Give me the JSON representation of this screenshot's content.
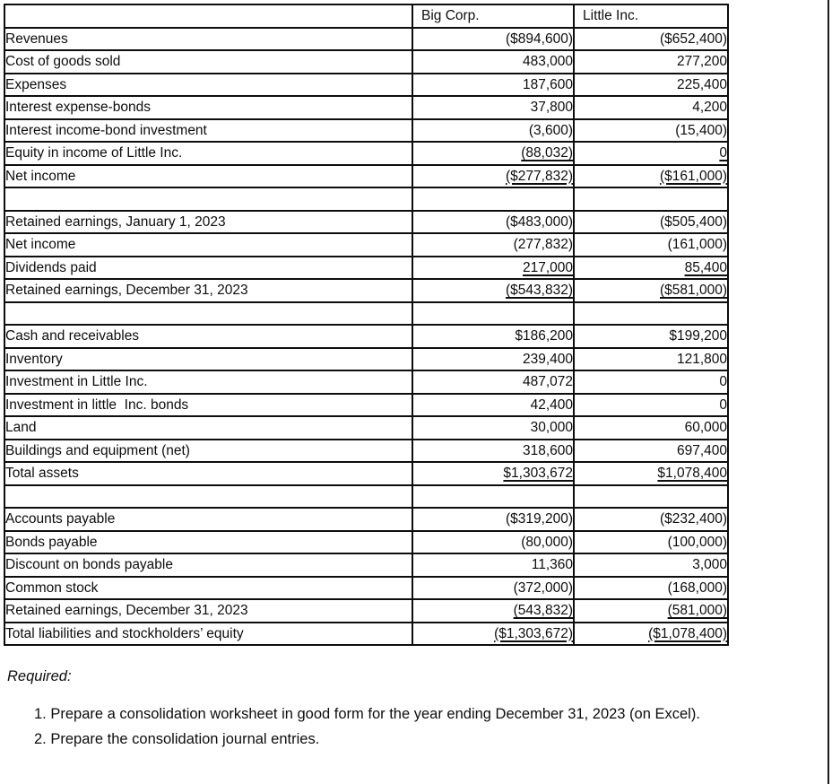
{
  "colors": {
    "background": "#ffffff",
    "text": "#0d0d0d",
    "table_border": "#0d0d0d"
  },
  "table": {
    "columns": [
      "",
      "Big Corp.",
      "Little Inc."
    ],
    "rows": [
      {
        "label": "Revenues",
        "big": "($894,600)",
        "little": "($652,400)",
        "u": false,
        "spacer": false
      },
      {
        "label": "Cost of goods sold",
        "big": "483,000",
        "little": "277,200",
        "u": false,
        "spacer": false
      },
      {
        "label": "Expenses",
        "big": "187,600",
        "little": "225,400",
        "u": false,
        "spacer": false
      },
      {
        "label": "Interest expense-bonds",
        "big": "37,800",
        "little": "4,200",
        "u": false,
        "spacer": false
      },
      {
        "label": "Interest income-bond investment",
        "big": "(3,600)",
        "little": "(15,400)",
        "u": false,
        "spacer": false
      },
      {
        "label": "Equity in income of Little Inc.",
        "big": "(88,032)",
        "little": "0",
        "u": true,
        "spacer": false
      },
      {
        "label": "Net income",
        "big": "($277,832)",
        "little": "($161,000)",
        "u": true,
        "spacer": false
      },
      {
        "label": "",
        "big": "",
        "little": "",
        "u": false,
        "spacer": true
      },
      {
        "label": "Retained earnings, January 1, 2023",
        "big": "($483,000)",
        "little": "($505,400)",
        "u": false,
        "spacer": false
      },
      {
        "label": "Net income",
        "big": "(277,832)",
        "little": "(161,000)",
        "u": false,
        "spacer": false
      },
      {
        "label": "Dividends paid",
        "big": "217,000",
        "little": "85,400",
        "u": true,
        "spacer": false
      },
      {
        "label": "Retained earnings, December 31, 2023",
        "big": "($543,832)",
        "little": "($581,000)",
        "u": true,
        "spacer": false
      },
      {
        "label": "",
        "big": "",
        "little": "",
        "u": false,
        "spacer": true
      },
      {
        "label": "Cash and receivables",
        "big": "$186,200",
        "little": "$199,200",
        "u": false,
        "spacer": false
      },
      {
        "label": "Inventory",
        "big": "239,400",
        "little": "121,800",
        "u": false,
        "spacer": false
      },
      {
        "label": "Investment in Little Inc.",
        "big": "487,072",
        "little": "0",
        "u": false,
        "spacer": false
      },
      {
        "label": "Investment in little  Inc. bonds",
        "big": "42,400",
        "little": "0",
        "u": false,
        "spacer": false
      },
      {
        "label": "Land",
        "big": "30,000",
        "little": "60,000",
        "u": false,
        "spacer": false
      },
      {
        "label": "Buildings and equipment (net)",
        "big": "318,600",
        "little": "697,400",
        "u": false,
        "spacer": false
      },
      {
        "label": "Total assets",
        "big": "$1,303,672",
        "little": "$1,078,400",
        "u": true,
        "spacer": false
      },
      {
        "label": "",
        "big": "",
        "little": "",
        "u": false,
        "spacer": true
      },
      {
        "label": "Accounts payable",
        "big": "($319,200)",
        "little": "($232,400)",
        "u": false,
        "spacer": false
      },
      {
        "label": "Bonds payable",
        "big": "(80,000)",
        "little": "(100,000)",
        "u": false,
        "spacer": false
      },
      {
        "label": "Discount on bonds payable",
        "big": "11,360",
        "little": "3,000",
        "u": false,
        "spacer": false
      },
      {
        "label": "Common stock",
        "big": "(372,000)",
        "little": "(168,000)",
        "u": false,
        "spacer": false
      },
      {
        "label": "Retained earnings, December 31, 2023",
        "big": "(543,832)",
        "little": "(581,000)",
        "u": true,
        "spacer": false
      },
      {
        "label": "Total liabilities and stockholders’ equity",
        "big": "($1,303,672)",
        "little": "($1,078,400)",
        "u": true,
        "spacer": false
      }
    ]
  },
  "required": {
    "heading": "Required:",
    "items": [
      "1. Prepare a consolidation worksheet in good form for the year ending December 31, 2023 (on Excel).",
      "2. Prepare the consolidation journal entries."
    ]
  }
}
